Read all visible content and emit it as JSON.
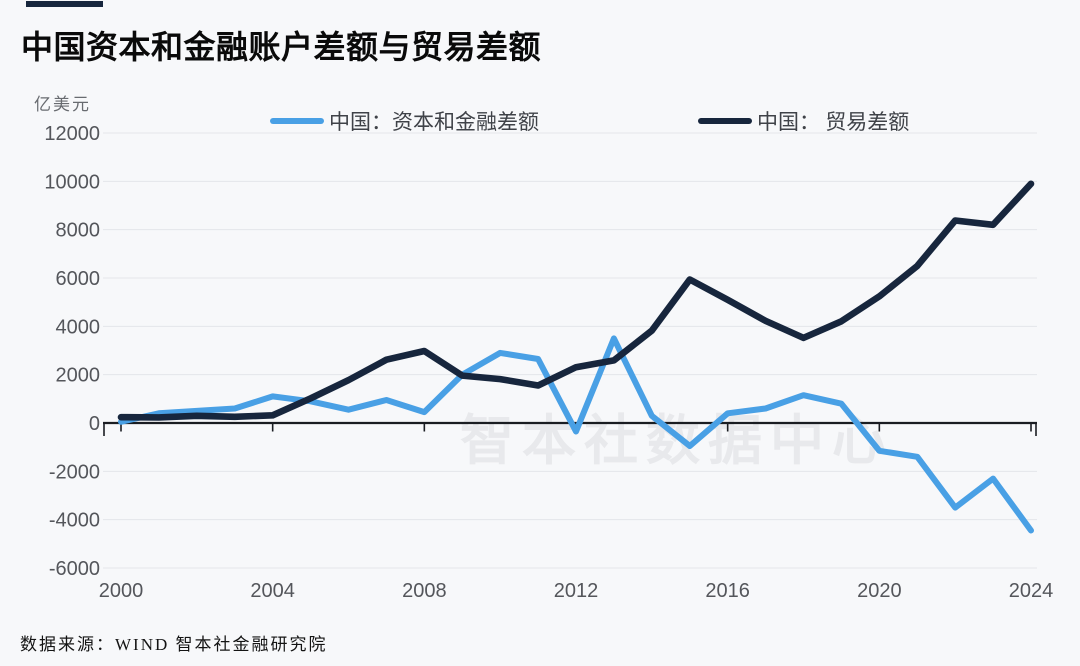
{
  "title": "中国资本和金融账户差额与贸易差额",
  "unit_label": "亿美元",
  "watermark": "智本社数据中心",
  "source": "数据来源：WIND 智本社金融研究院",
  "colors": {
    "background": "#f7f8fa",
    "accent_bar": "#17263d",
    "capital_series": "#49a0e5",
    "trade_series": "#17263d",
    "gridline": "#e4e6ea",
    "zero_axis": "#1a1d22",
    "tick_label": "#54565b",
    "watermark": "#e8e9ec"
  },
  "chart_data": {
    "type": "line",
    "title": "中国资本和金融账户差额与贸易差额",
    "ylabel": "亿美元",
    "xlabel": "",
    "x": [
      2000,
      2001,
      2002,
      2003,
      2004,
      2005,
      2006,
      2007,
      2008,
      2009,
      2010,
      2011,
      2012,
      2013,
      2014,
      2015,
      2016,
      2017,
      2018,
      2019,
      2020,
      2021,
      2022,
      2023,
      2024
    ],
    "x_tick_labels": [
      "2000",
      "2004",
      "2008",
      "2012",
      "2016",
      "2020",
      "2024"
    ],
    "ylim": [
      -6000,
      12000
    ],
    "y_tick_step": 2000,
    "grid": "horizontal",
    "legend_position": "top",
    "series": [
      {
        "name": "中国：资本和金融差额",
        "color": "#49a0e5",
        "values": [
          50,
          400,
          500,
          600,
          1100,
          900,
          550,
          950,
          450,
          2000,
          2900,
          2650,
          -350,
          3500,
          300,
          -950,
          400,
          600,
          1150,
          800,
          -1150,
          -1400,
          -3500,
          -2300,
          -4450
        ]
      },
      {
        "name": "中国： 贸易差额",
        "color": "#17263d",
        "values": [
          240,
          230,
          300,
          255,
          320,
          1020,
          1775,
          2620,
          2980,
          1960,
          1815,
          1550,
          2310,
          2590,
          3825,
          5940,
          5100,
          4225,
          3520,
          4210,
          5240,
          6500,
          8380,
          8200,
          9900
        ]
      }
    ]
  }
}
